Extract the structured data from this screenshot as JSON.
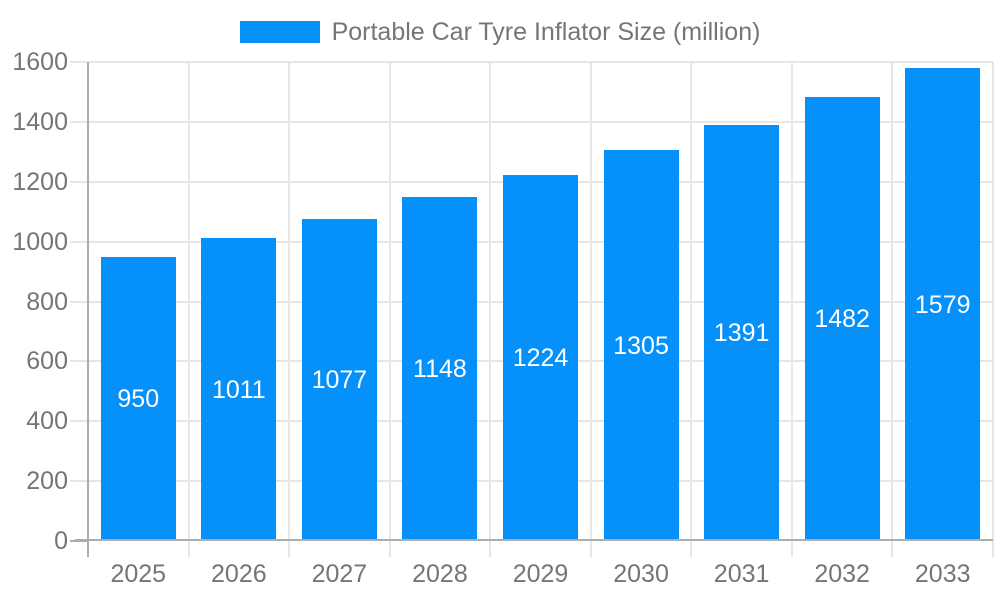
{
  "chart_data": {
    "type": "bar",
    "title": "Portable Car Tyre Inflator Size (million)",
    "categories": [
      "2025",
      "2026",
      "2027",
      "2028",
      "2029",
      "2030",
      "2031",
      "2032",
      "2033"
    ],
    "values": [
      950,
      1011,
      1077,
      1148,
      1224,
      1305,
      1391,
      1482,
      1579
    ],
    "xlabel": "",
    "ylabel": "",
    "ylim": [
      0,
      1600
    ],
    "y_ticks": [
      0,
      200,
      400,
      600,
      800,
      1000,
      1200,
      1400,
      1600
    ],
    "grid": true,
    "legend_position": "top-center",
    "value_label_position": "inside-center",
    "colors": {
      "bar": "#0690fa",
      "grid": "#e6e6e6",
      "axis": "#adadad",
      "tick_text": "#757575",
      "legend_text": "#757575",
      "value_text": "#ffffff",
      "background": "#ffffff"
    }
  }
}
